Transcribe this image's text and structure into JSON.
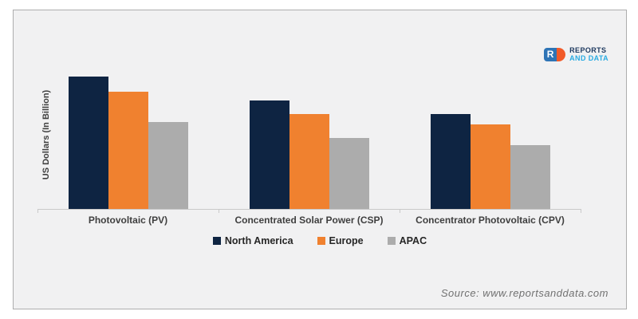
{
  "brand": {
    "mark_letter": "R",
    "line1": "REPORTS",
    "line2": "AND DATA"
  },
  "source_note": "Source: www.reportsanddata.com",
  "colors": {
    "panel_background": "#f1f1f2",
    "panel_border": "#adadad",
    "axis_line": "#c9c9c9",
    "logo_blue": "#2e74b6",
    "logo_orange": "#f15a29",
    "logo_text_navy": "#1f3a60",
    "logo_text_cyan": "#29abe2"
  },
  "chart_data": {
    "type": "bar",
    "title": "",
    "xlabel": "",
    "ylabel": "US Dollars (In Billion)",
    "categories": [
      "Photovoltaic (PV)",
      "Concentrated Solar Power (CSP)",
      "Concentrator Photovoltaic (CPV)"
    ],
    "series": [
      {
        "name": "North America",
        "color": "#0e2442",
        "values": [
          100,
          82,
          72
        ]
      },
      {
        "name": "Europe",
        "color": "#f0812f",
        "values": [
          89,
          72,
          64
        ]
      },
      {
        "name": "APAC",
        "color": "#acacac",
        "values": [
          66,
          54,
          48
        ]
      }
    ],
    "ylim": [
      0,
      134
    ],
    "grid": false,
    "legend_position": "bottom",
    "y_tick_labels_visible": false,
    "value_scale": "relative estimate (no numeric axis labels shown; tallest bar = 100)"
  }
}
